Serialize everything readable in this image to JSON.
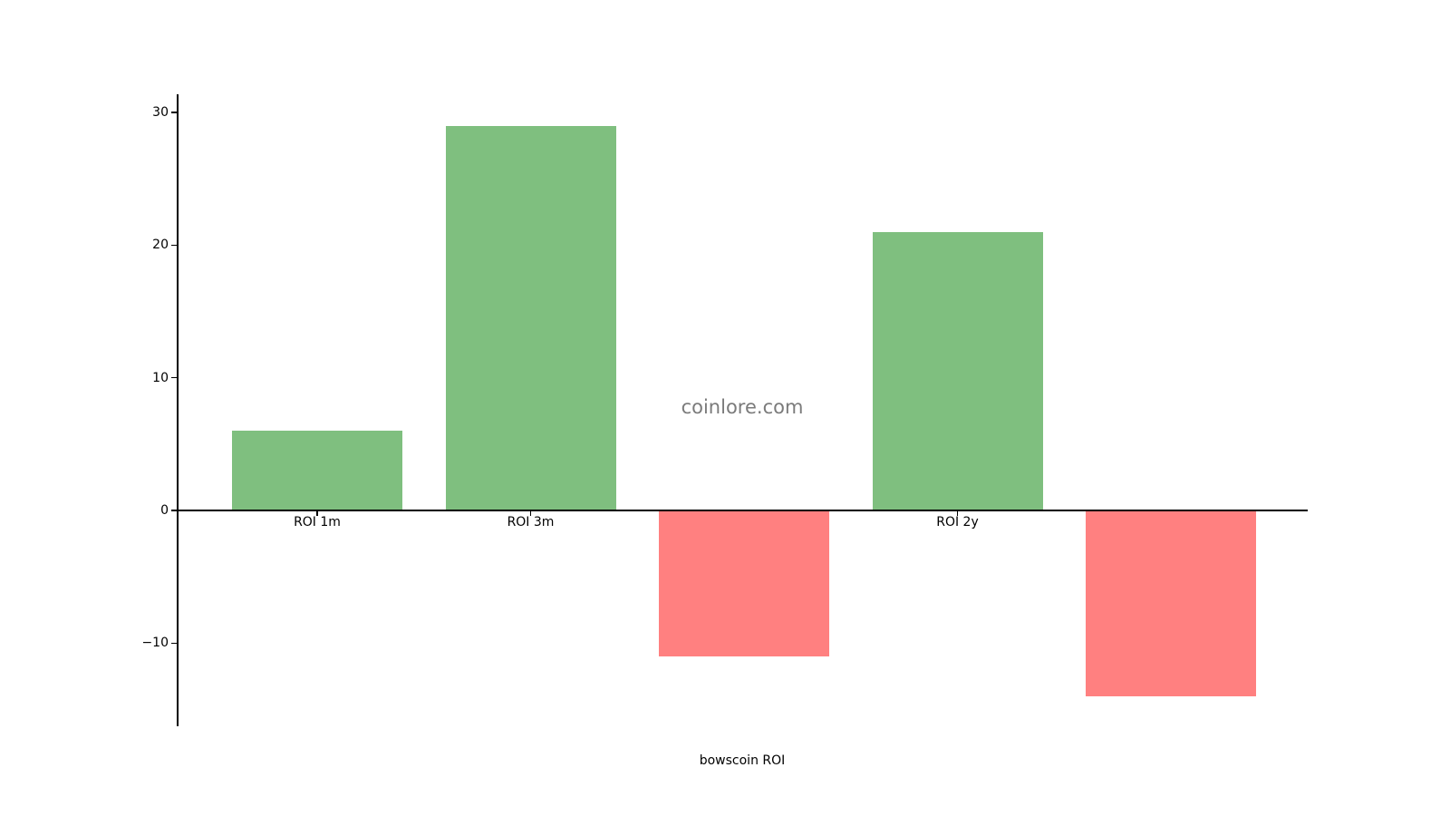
{
  "watermark": "coinlore.com",
  "chart_data": {
    "type": "bar",
    "title": "",
    "xlabel": "bowscoin ROI",
    "ylabel": "",
    "categories": [
      "ROI 1m",
      "ROI 3m",
      "",
      "ROI 2y",
      ""
    ],
    "values": [
      6,
      29,
      -11,
      21,
      -14
    ],
    "bar_colors": [
      "#7fbf7f",
      "#7fbf7f",
      "#ff8080",
      "#7fbf7f",
      "#ff8080"
    ],
    "positive_color": "#7fbf7f",
    "negative_color": "#ff8080",
    "y_ticks": [
      30,
      20,
      10,
      0,
      -10
    ],
    "y_tick_labels": [
      "30",
      "20",
      "10",
      "0",
      "−10"
    ],
    "ylim": [
      -16.2,
      31.4
    ],
    "grid": false,
    "legend": false,
    "axis_color": "#000000",
    "background_color": "#ffffff",
    "hidden_tick_label_indexes": [
      2,
      4
    ],
    "hidden_tick_label_reason": "covered by negative bars drawn over the axis labels"
  }
}
